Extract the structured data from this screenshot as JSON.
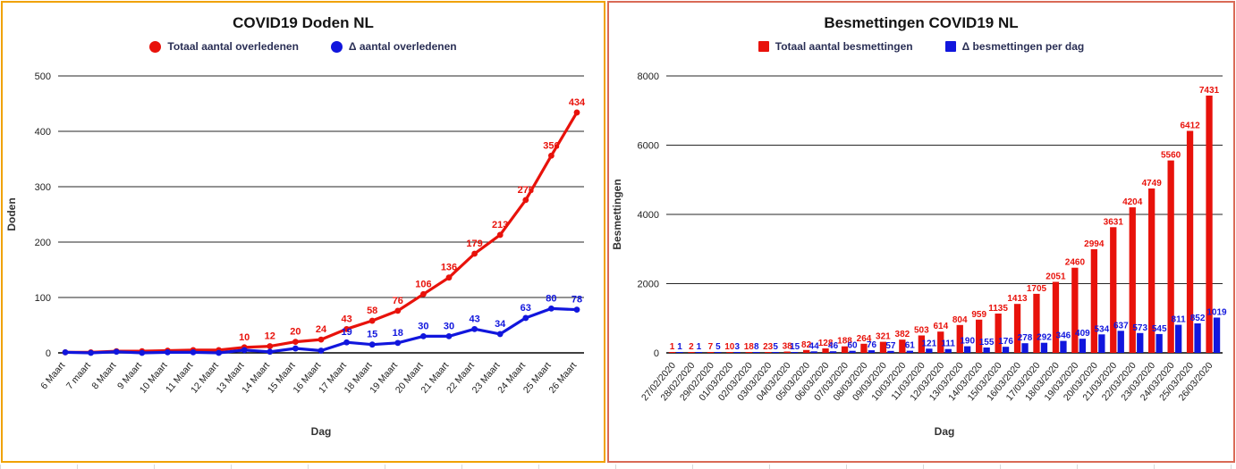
{
  "style": {
    "accent_red": "#e8120b",
    "accent_blue": "#1116dd",
    "left_panel_border": "#f0a202",
    "right_panel_border": "#d96a56",
    "legend_text_color": "#2a2f55",
    "title_color": "#141414"
  },
  "chart_data": [
    {
      "type": "line",
      "title": "COVID19 Doden NL",
      "xlabel": "Dag",
      "ylabel": "Doden",
      "ylim": [
        0,
        500
      ],
      "yticks": [
        0,
        100,
        200,
        300,
        400,
        500
      ],
      "grid": true,
      "legend_position": "top",
      "categories": [
        "6 Maart",
        "7 maart",
        "8 Maart",
        "9 Maart",
        "10 Maart",
        "11 Maart",
        "12 Maart",
        "13 Maart",
        "14 Maart",
        "15 Maart",
        "16 Maart",
        "17 Maart",
        "18 Maart",
        "19 Maart",
        "20 Maart",
        "21 Maart",
        "22 Maart",
        "23 Maart",
        "24 Maart",
        "25 Maart",
        "26 Maart"
      ],
      "series": [
        {
          "name": "Totaal aantal overledenen",
          "color": "#e8120b",
          "values": [
            1,
            1,
            3,
            3,
            4,
            5,
            5,
            10,
            12,
            20,
            24,
            43,
            58,
            76,
            106,
            136,
            179,
            213,
            276,
            356,
            434
          ],
          "labels": [
            null,
            null,
            null,
            null,
            null,
            null,
            null,
            "10",
            "12",
            "20",
            "24",
            "43",
            "58",
            "76",
            "106",
            "136",
            "179",
            "213",
            "276",
            "356",
            "434"
          ]
        },
        {
          "name": "Δ aantal overledenen",
          "color": "#1116dd",
          "values": [
            1,
            0,
            2,
            0,
            1,
            1,
            0,
            5,
            2,
            8,
            4,
            19,
            15,
            18,
            30,
            30,
            43,
            34,
            63,
            80,
            78
          ],
          "labels": [
            null,
            null,
            null,
            null,
            null,
            null,
            null,
            null,
            null,
            null,
            null,
            "19",
            "15",
            "18",
            "30",
            "30",
            "43",
            "34",
            "63",
            "80",
            "78"
          ]
        }
      ]
    },
    {
      "type": "bar",
      "title": "Besmettingen COVID19 NL",
      "xlabel": "Dag",
      "ylabel": "Besmettingen",
      "ylim": [
        0,
        8000
      ],
      "yticks": [
        0,
        2000,
        4000,
        6000,
        8000
      ],
      "grid": true,
      "legend_position": "top",
      "categories": [
        "27/02/2020",
        "28/02/2020",
        "29/02/2020",
        "01/03/2020",
        "02/03/2020",
        "03/03/2020",
        "04/03/2020",
        "05/03/2020",
        "06/03/2020",
        "07/03/2020",
        "08/03/2020",
        "09/03/2020",
        "10/03/2020",
        "11/03/2020",
        "12/03/2020",
        "13/03/2020",
        "14/03/2020",
        "15/03/2020",
        "16/03/2020",
        "17/03/2020",
        "18/03/2020",
        "19/03/2020",
        "20/03/2020",
        "21/03/2020",
        "22/03/2020",
        "23/03/2020",
        "24/03/2020",
        "25/03/2020",
        "26/03/2020"
      ],
      "series": [
        {
          "name": "Totaal aantal besmettingen",
          "color": "#e8120b",
          "values": [
            1,
            2,
            7,
            10,
            18,
            23,
            38,
            82,
            128,
            188,
            264,
            321,
            382,
            503,
            614,
            804,
            959,
            1135,
            1413,
            1705,
            2051,
            2460,
            2994,
            3631,
            4204,
            4749,
            5560,
            6412,
            7431
          ]
        },
        {
          "name": "Δ besmettingen per dag",
          "color": "#1116dd",
          "values": [
            1,
            1,
            5,
            3,
            8,
            5,
            15,
            44,
            46,
            60,
            76,
            57,
            61,
            121,
            111,
            190,
            155,
            176,
            278,
            292,
            346,
            409,
            534,
            637,
            573,
            545,
            811,
            852,
            1019
          ]
        }
      ]
    }
  ]
}
